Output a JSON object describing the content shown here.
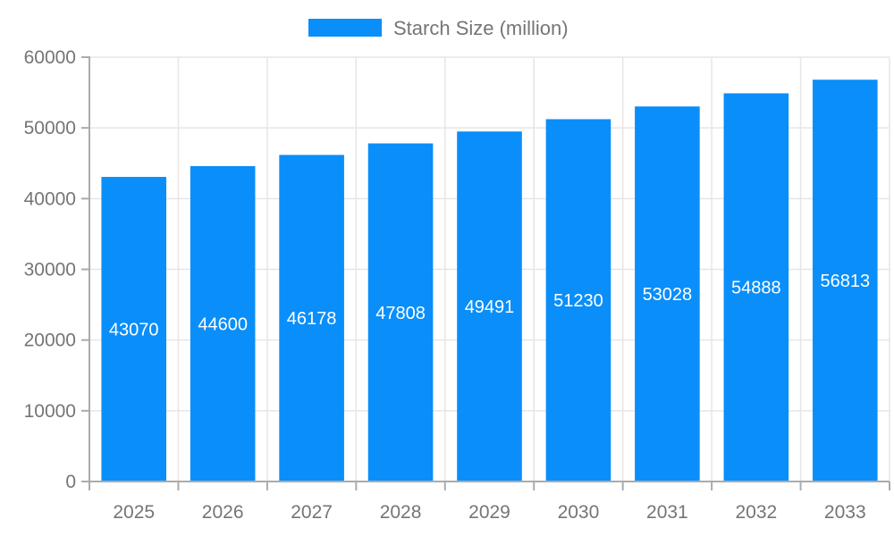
{
  "chart_data": {
    "type": "bar",
    "title": "",
    "legend": {
      "label": "Starch Size (million)",
      "position": "top"
    },
    "categories": [
      "2025",
      "2026",
      "2027",
      "2028",
      "2029",
      "2030",
      "2031",
      "2032",
      "2033"
    ],
    "series": [
      {
        "name": "Starch Size (million)",
        "values": [
          43070,
          44600,
          46178,
          47808,
          49491,
          51230,
          53028,
          54888,
          56813
        ]
      }
    ],
    "data_labels": [
      "43070",
      "44600",
      "46178",
      "47808",
      "49491",
      "51230",
      "53028",
      "54888",
      "56813"
    ],
    "xlabel": "",
    "ylabel": "",
    "ylim": [
      0,
      60000
    ],
    "ytick_step": 10000,
    "ytick_labels": [
      "0",
      "10000",
      "20000",
      "30000",
      "40000",
      "50000",
      "60000"
    ],
    "grid": true,
    "colors": {
      "bar": "#0a8ef9",
      "grid_line": "#e6e6e6",
      "axis_line": "#ababab",
      "tick_text": "#757575",
      "legend_text": "#757575",
      "data_label_text": "#ffffff",
      "background": "#ffffff"
    }
  }
}
